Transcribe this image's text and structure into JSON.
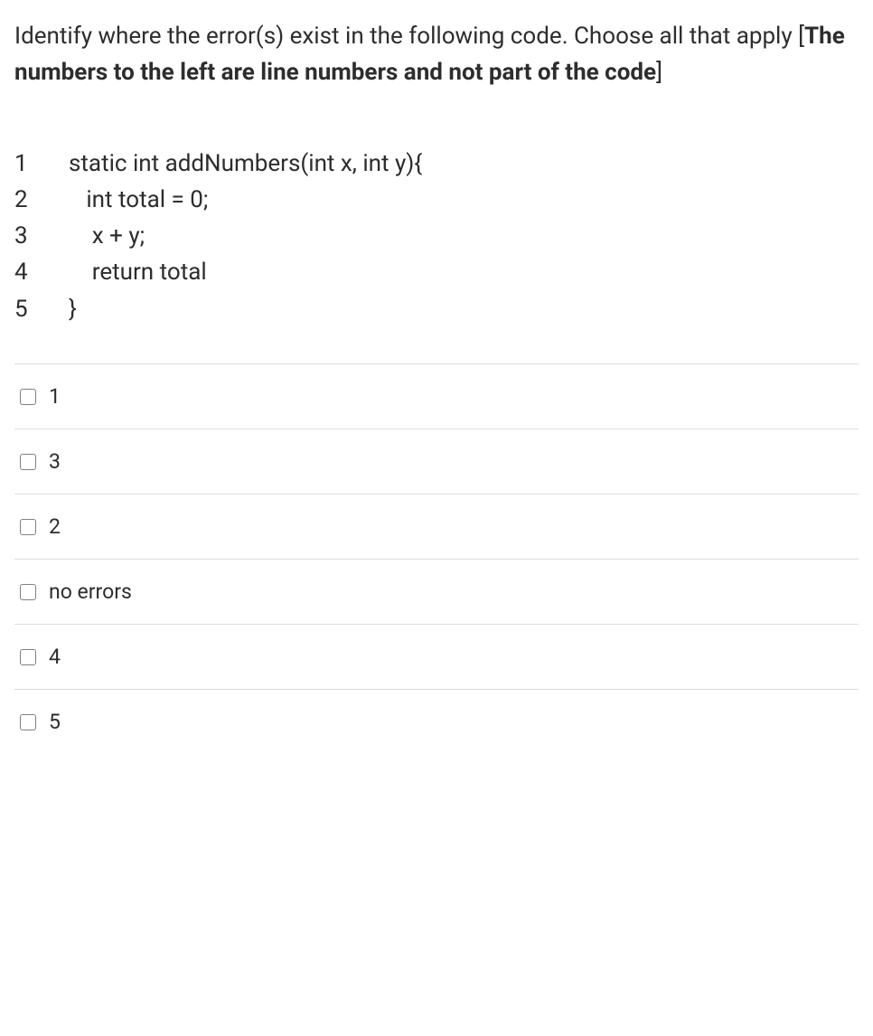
{
  "question": {
    "prefix": "Identify where the error(s) exist in the following code. Choose all that apply  [",
    "bold": "The numbers to the left are line numbers and not part of the code",
    "suffix": "]"
  },
  "code": {
    "lines": [
      {
        "num": "1",
        "text": "static int addNumbers(int x, int y){"
      },
      {
        "num": "2",
        "text": "   int total = 0;"
      },
      {
        "num": "3",
        "text": "    x + y;"
      },
      {
        "num": "4",
        "text": "    return total"
      },
      {
        "num": "5",
        "text": "}"
      }
    ]
  },
  "options": [
    {
      "label": "1"
    },
    {
      "label": "3"
    },
    {
      "label": "2"
    },
    {
      "label": "no errors"
    },
    {
      "label": "4"
    },
    {
      "label": "5"
    }
  ],
  "colors": {
    "text": "#2d2d2d",
    "divider": "#dddddd",
    "checkbox_border": "#808080",
    "background": "#ffffff"
  },
  "typography": {
    "question_fontsize": 26,
    "code_fontsize": 26,
    "option_fontsize": 23,
    "line_height": 1.55
  }
}
